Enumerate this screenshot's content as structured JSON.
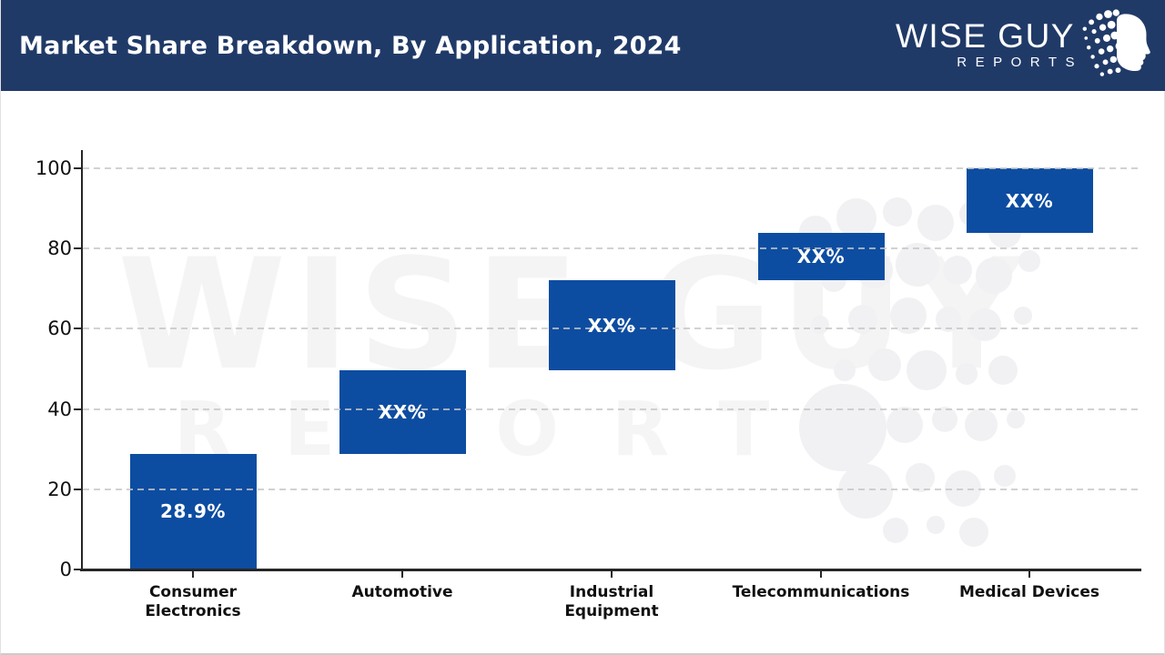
{
  "header": {
    "title": "Market Share Breakdown, By Application, 2024",
    "logo": {
      "primary": "WISE GUY",
      "secondary": "REPORTS",
      "face_icon": "dotted-face-profile"
    }
  },
  "watermark": {
    "primary": "WISE GUY",
    "secondary": "REPORTS",
    "face_icon": "dotted-face-profile"
  },
  "chart_data": {
    "type": "bar",
    "variant": "waterfall",
    "title": "Market Share Breakdown, By Application, 2024",
    "categories": [
      "Consumer Electronics",
      "Automotive",
      "Industrial Equipment",
      "Telecommunications",
      "Medical Devices"
    ],
    "segments": [
      {
        "category": "Consumer Electronics",
        "category_lines": [
          "Consumer",
          "Electronics"
        ],
        "start": 0,
        "end": 28.9,
        "label": "28.9%"
      },
      {
        "category": "Automotive",
        "category_lines": [
          "Automotive"
        ],
        "start": 28.9,
        "end": 49.7,
        "label": "XX%"
      },
      {
        "category": "Industrial Equipment",
        "category_lines": [
          "Industrial",
          "Equipment"
        ],
        "start": 49.7,
        "end": 72.0,
        "label": "XX%"
      },
      {
        "category": "Telecommunications",
        "category_lines": [
          "Telecommunications"
        ],
        "start": 72.0,
        "end": 83.8,
        "label": "XX%"
      },
      {
        "category": "Medical Devices",
        "category_lines": [
          "Medical Devices"
        ],
        "start": 83.8,
        "end": 100,
        "label": "XX%"
      }
    ],
    "yticks": [
      0,
      20,
      40,
      60,
      80,
      100
    ],
    "ylim": [
      0,
      104.5
    ],
    "xlabel": "",
    "ylabel": "",
    "legend": "none",
    "grid": {
      "axis": "y",
      "style": "dashed",
      "on": true
    },
    "bar_color": "#0d4da1",
    "bar_label_color": "#ffffff",
    "axis_color": "#262626",
    "tick_label_color": "#111111",
    "gridline_color": "#c6c6c6",
    "header_background": "#203a68",
    "watermark_color": "#f4f4f4"
  }
}
